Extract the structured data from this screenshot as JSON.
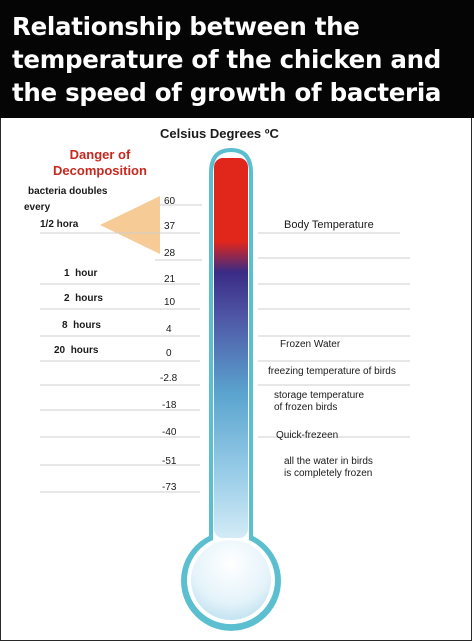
{
  "header": {
    "lines": [
      "Relationship between the",
      "temperature of the chicken and",
      "the speed of growth of bacteria"
    ]
  },
  "scale_title": "Celsius Degrees ºC",
  "danger": {
    "title_lines": [
      "Danger of",
      "Decomposition"
    ],
    "doubles_lines": [
      "bacteria doubles",
      "every",
      "1/2 hora"
    ]
  },
  "times": [
    {
      "num": "1",
      "unit": "hour"
    },
    {
      "num": "2",
      "unit": "hours"
    },
    {
      "num": "8",
      "unit": "hours"
    },
    {
      "num": "20",
      "unit": "hours"
    }
  ],
  "ticks": [
    "60",
    "37",
    "28",
    "21",
    "10",
    "4",
    "0",
    "-2.8",
    "-18",
    "-40",
    "-51",
    "-73"
  ],
  "labels": {
    "body_temperature": "Body Temperature",
    "frozen_water": "Frozen Water",
    "freezing_birds": "freezing temperature of birds",
    "storage_lines": [
      "storage temperature",
      "of frozen birds"
    ],
    "quick_freeze": "Quick-frezeen",
    "all_water_lines": [
      "all the water in birds",
      "is completely frozen"
    ]
  },
  "colors": {
    "header_bg": "#050505",
    "danger_text": "#c8281f",
    "wedge": "#f5c58a",
    "tube_outline": "#5bbfd0",
    "mercury_hot": "#e1261c",
    "mercury_purple": "#3a2b85",
    "mercury_cold": "#c8e6f4"
  }
}
